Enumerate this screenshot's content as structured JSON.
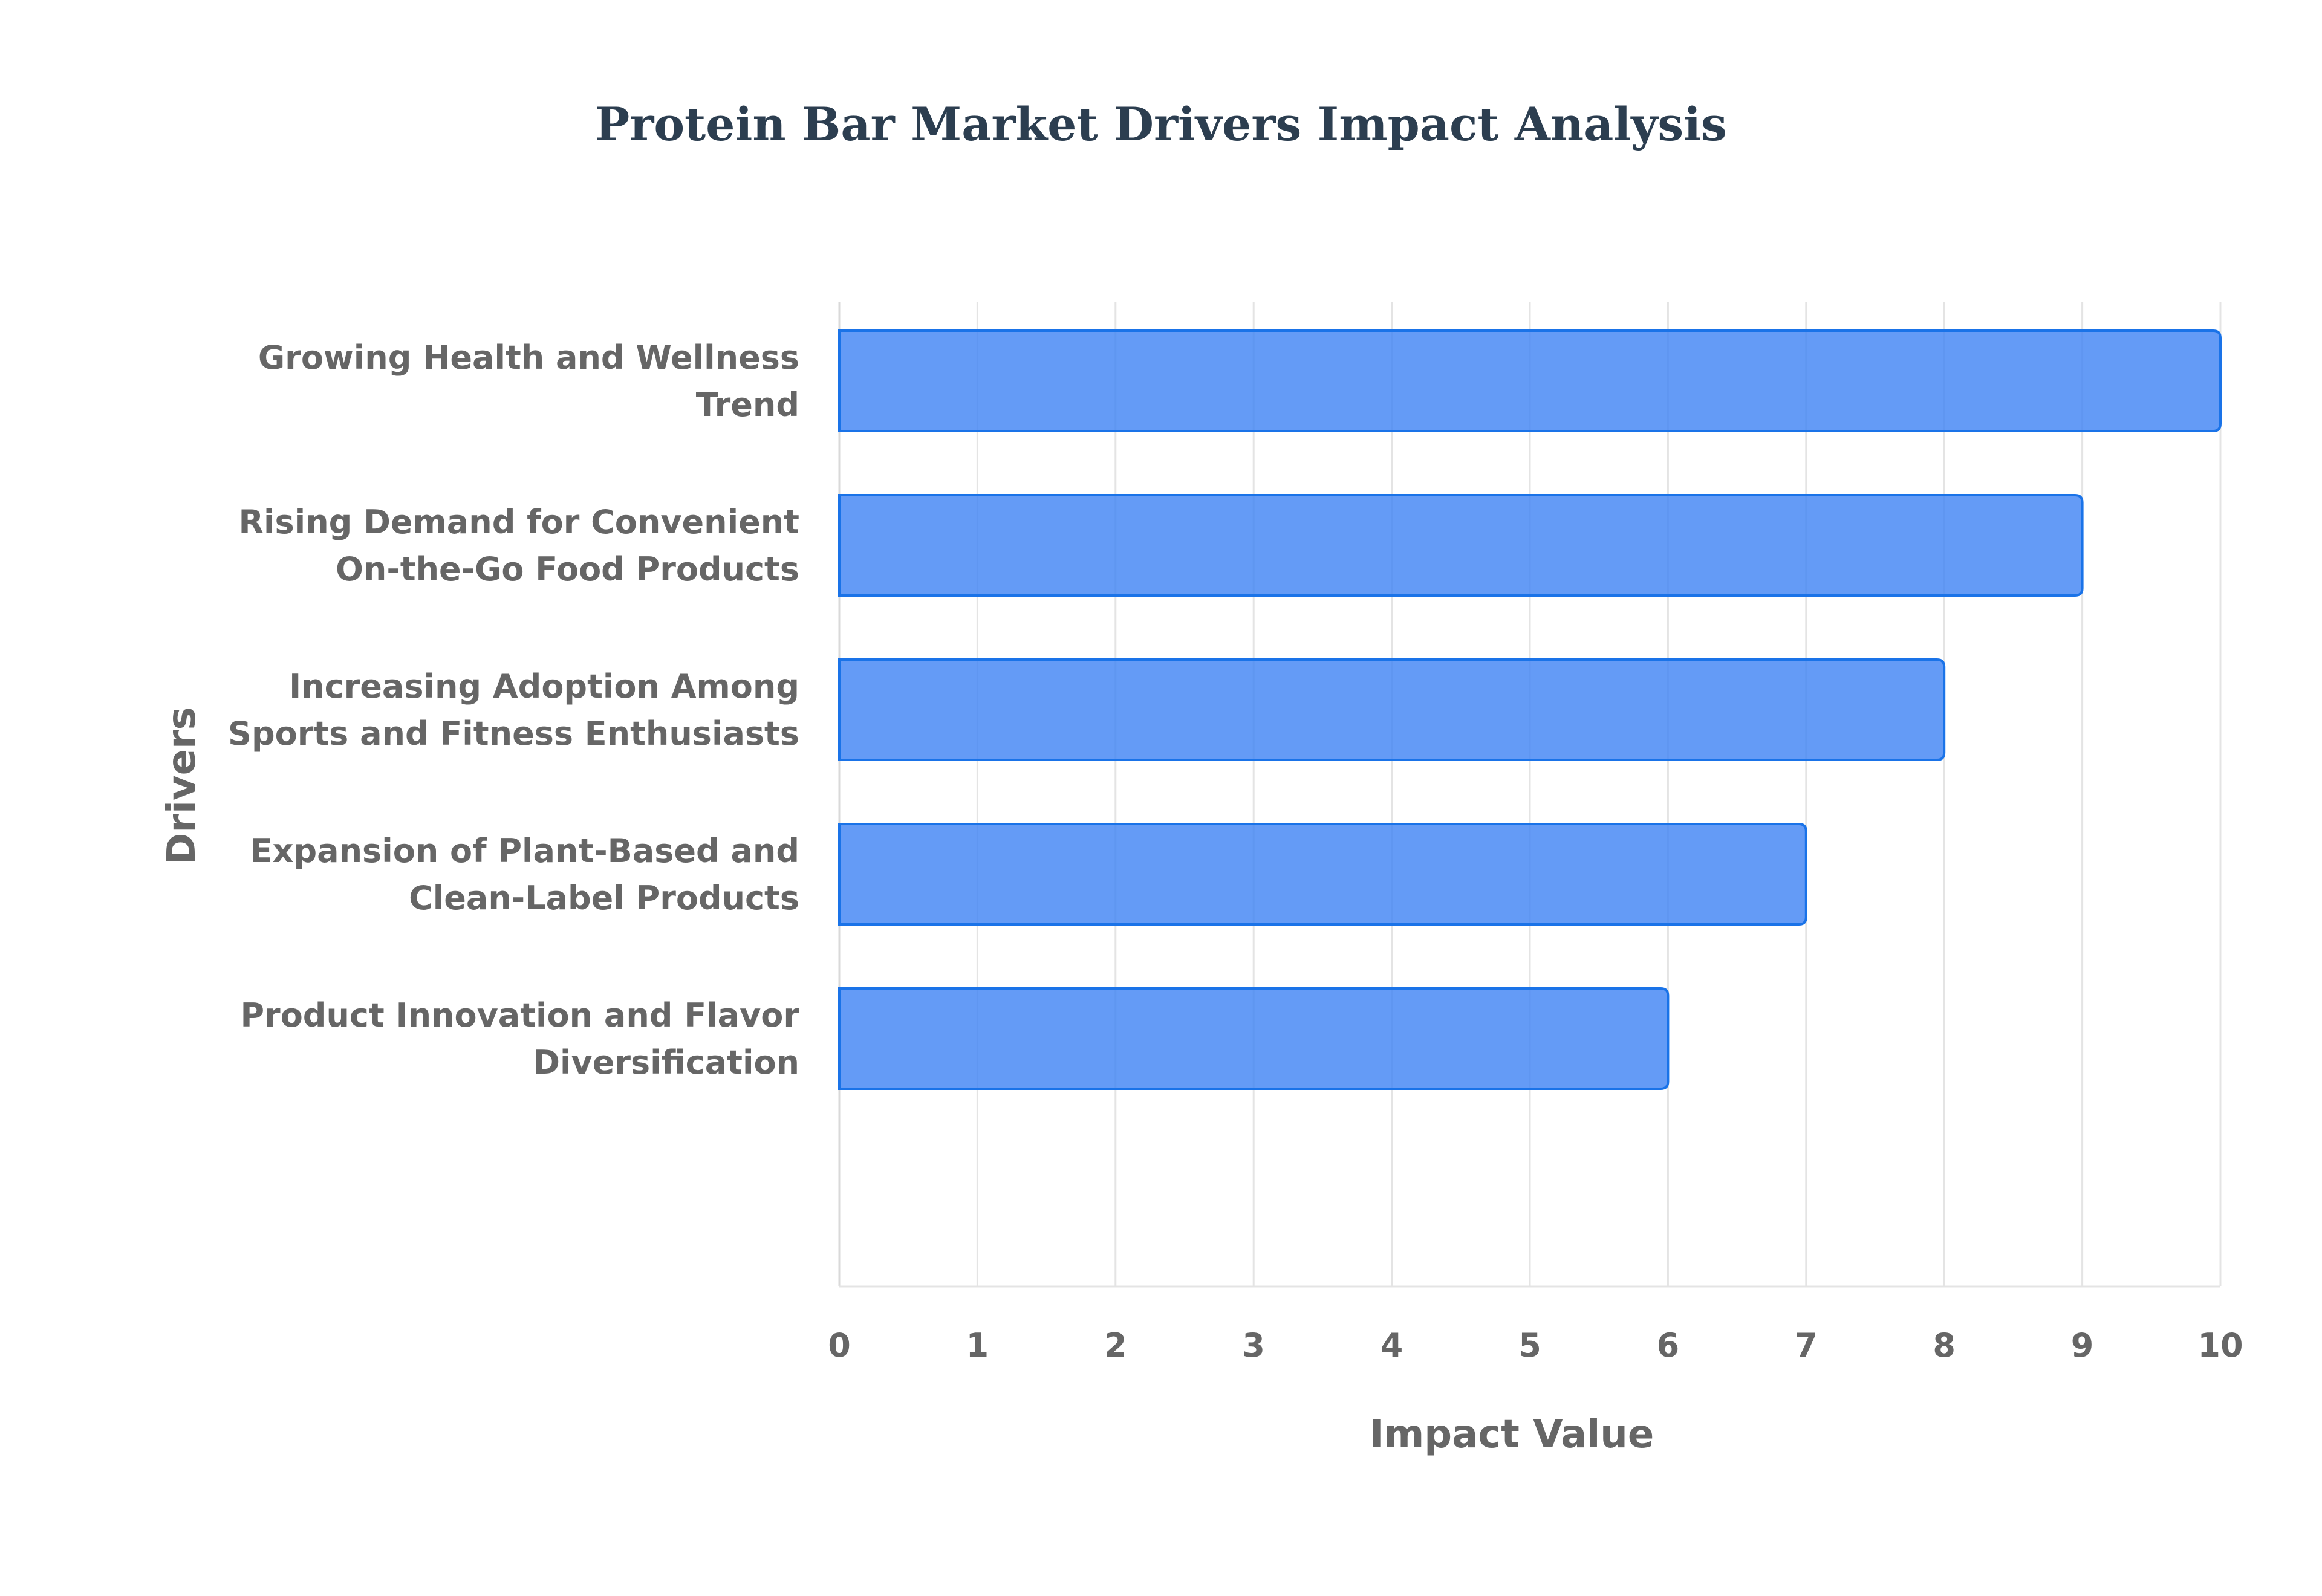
{
  "chart_data": {
    "type": "bar",
    "orientation": "horizontal",
    "title": "Protein Bar Market Drivers Impact Analysis",
    "xlabel": "Impact Value",
    "ylabel": "Drivers",
    "xlim": [
      0,
      10
    ],
    "x_ticks": [
      "0",
      "1",
      "2",
      "3",
      "4",
      "5",
      "6",
      "7",
      "8",
      "9",
      "10"
    ],
    "grid": true,
    "legend": "none",
    "categories": [
      "Growing Health and Wellness Trend",
      "Rising Demand for Convenient On-the-Go Food Products",
      "Increasing Adoption Among Sports and Fitness Enthusiasts",
      "Expansion of Plant-Based and Clean-Label Products",
      "Product Innovation and Flavor Diversification"
    ],
    "category_label_lines": [
      [
        "Growing Health and Wellness",
        "Trend"
      ],
      [
        "Rising Demand for Convenient",
        "On-the-Go Food Products"
      ],
      [
        "Increasing Adoption Among",
        "Sports and Fitness Enthusiasts"
      ],
      [
        "Expansion of Plant-Based and",
        "Clean-Label Products"
      ],
      [
        "Product Innovation and Flavor",
        "Diversification"
      ]
    ],
    "values": [
      10,
      9,
      8,
      7,
      6
    ],
    "colors": {
      "bar_fill": "#4285f4",
      "bar_border": "#1a73e8",
      "title": "#2c3e50",
      "axis_text": "#666666",
      "grid": "#e4e4e4"
    }
  }
}
